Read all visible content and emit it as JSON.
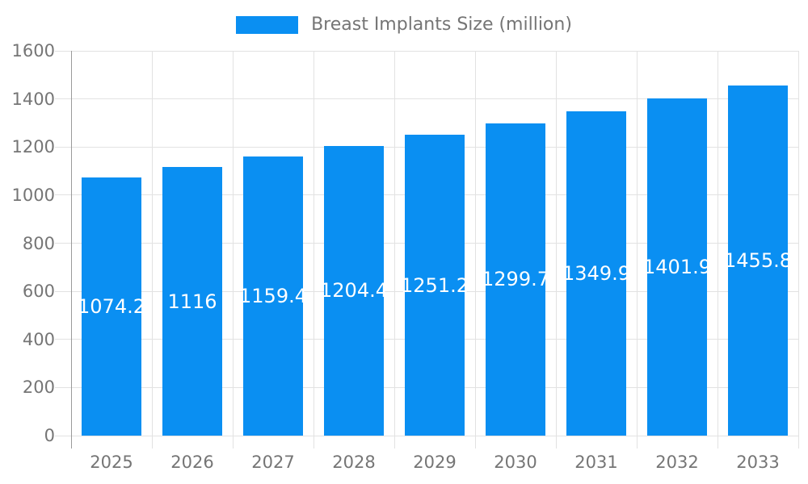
{
  "chart_data": {
    "type": "bar",
    "title": "Breast Implants Size (million)",
    "categories": [
      "2025",
      "2026",
      "2027",
      "2028",
      "2029",
      "2030",
      "2031",
      "2032",
      "2033"
    ],
    "values": [
      1074.2,
      1116,
      1159.4,
      1204.4,
      1251.2,
      1299.7,
      1349.9,
      1401.9,
      1455.8
    ],
    "value_labels": [
      "1074.2",
      "1116",
      "1159.4",
      "1204.4",
      "1251.2",
      "1299.7",
      "1349.9",
      "1401.9",
      "1455.8"
    ],
    "xlabel": "",
    "ylabel": "",
    "ylim": [
      0,
      1600
    ],
    "yticks": [
      0,
      200,
      400,
      600,
      800,
      1000,
      1200,
      1400,
      1600
    ],
    "grid": true,
    "legend_position": "top-center",
    "colors": {
      "bar": "#0a8ff2",
      "value_label": "#ffffff",
      "axis_text": "#757575",
      "grid_line": "#e2e2e2",
      "axis_line": "#9a9a9a"
    }
  }
}
